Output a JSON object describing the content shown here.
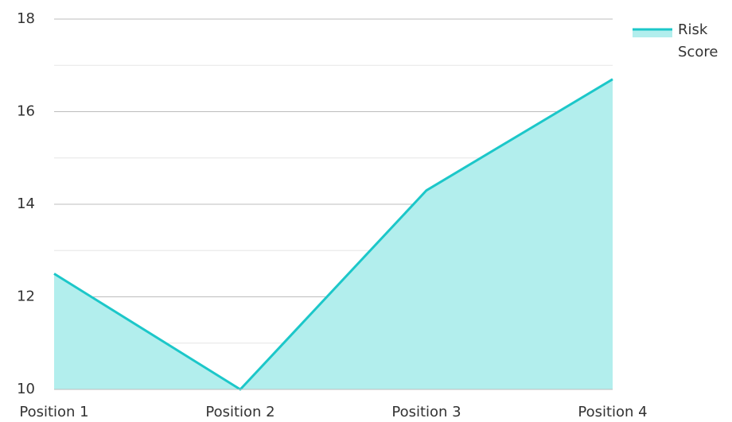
{
  "chart_data": {
    "type": "area",
    "categories": [
      "Position 1",
      "Position 2",
      "Position 3",
      "Position 4"
    ],
    "series": [
      {
        "name": "Risk Score",
        "color": "#1cc7c9",
        "fill": "#b2eeed",
        "values": [
          12.5,
          10,
          14.3,
          16.7
        ]
      }
    ],
    "ylim": [
      10,
      18
    ],
    "yticks": [
      10,
      12,
      14,
      16,
      18
    ],
    "minor_yticks": [
      11,
      13,
      15,
      17
    ],
    "grid": true,
    "legend": "top-right"
  }
}
